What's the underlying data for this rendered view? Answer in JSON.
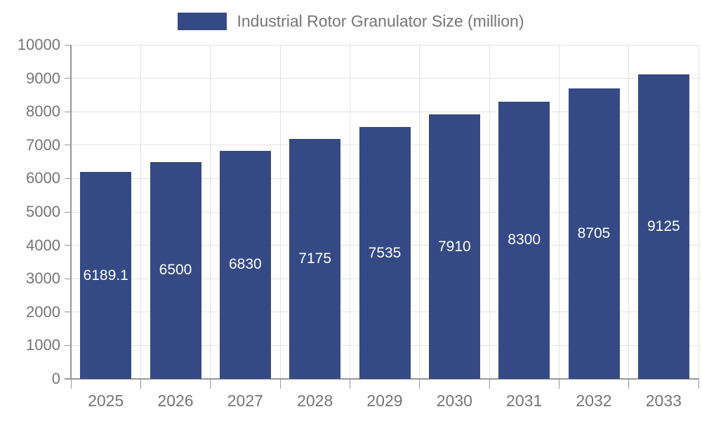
{
  "legend": {
    "label": "Industrial Rotor Granulator Size (million)"
  },
  "colors": {
    "bar": "#354a84",
    "grid": "#e2e2e2",
    "axis": "#979797",
    "tick_label": "#757575",
    "legend_label": "#757575",
    "value_label": "#ffffff",
    "background": "#ffffff"
  },
  "chart_data": {
    "type": "bar",
    "title": "Industrial Rotor Granulator Size (million)",
    "categories": [
      "2025",
      "2026",
      "2027",
      "2028",
      "2029",
      "2030",
      "2031",
      "2032",
      "2033"
    ],
    "values": [
      6189.1,
      6500,
      6830,
      7175,
      7535,
      7910,
      8300,
      8705,
      9125
    ],
    "value_labels": [
      "6189.1",
      "6500",
      "6830",
      "7175",
      "7535",
      "7910",
      "8300",
      "8705",
      "9125"
    ],
    "xlabel": "",
    "ylabel": "",
    "ylim": [
      0,
      10000
    ],
    "ytick_interval": 1000,
    "ytick_labels": [
      "0",
      "1000",
      "2000",
      "3000",
      "4000",
      "5000",
      "6000",
      "7000",
      "8000",
      "9000",
      "10000"
    ],
    "grid": true,
    "legend_position": "top",
    "value_label_position": "inside-center"
  }
}
